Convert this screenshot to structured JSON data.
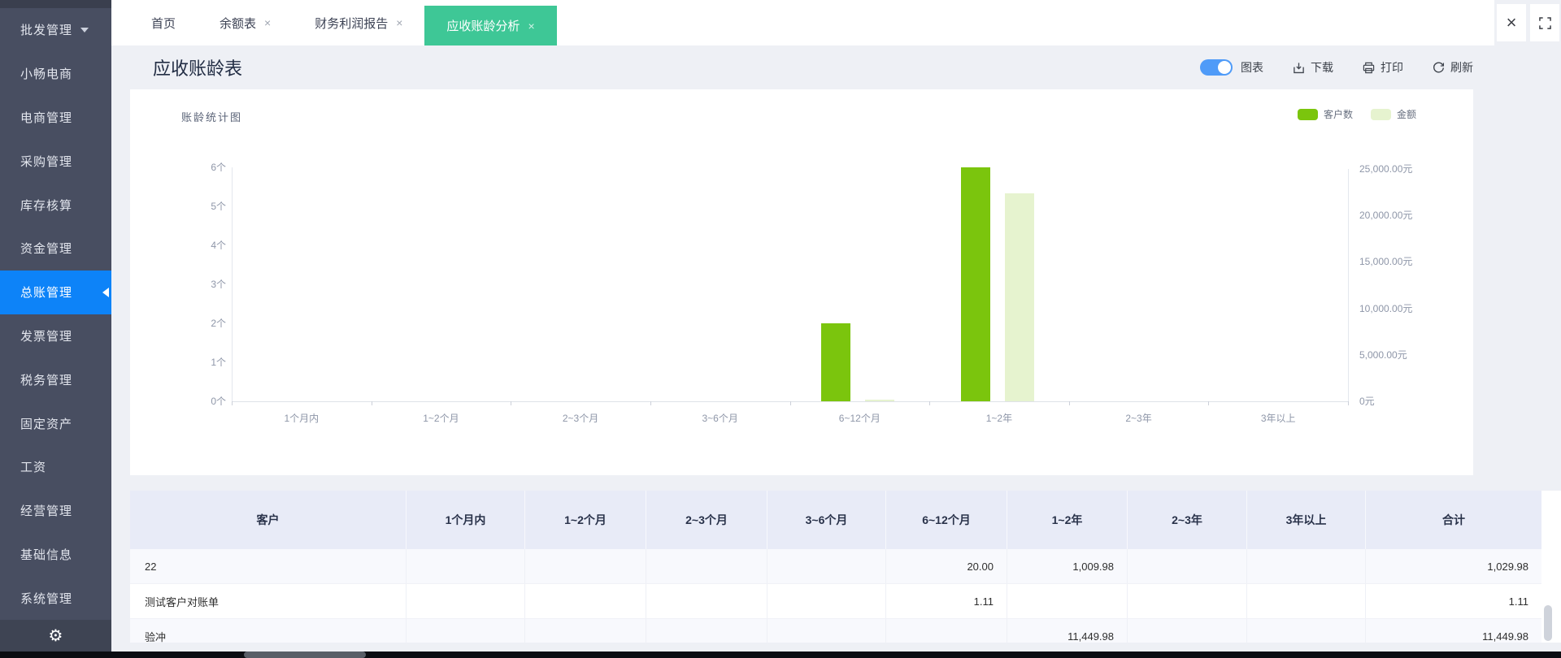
{
  "colors": {
    "sidebar_bg": "#484e61",
    "active_item_blue": "#0d83f8",
    "active_tab_green": "#3ec796",
    "toggle_blue": "#4f9bf8",
    "bar_customers_green": "#7bc50d",
    "bar_amount_light_green": "#e6f3cf",
    "table_header_bg": "#e8ebf7"
  },
  "sidebar": {
    "items": [
      {
        "label": "批发管理",
        "caret": true
      },
      {
        "label": "小畅电商"
      },
      {
        "label": "电商管理"
      },
      {
        "label": "采购管理"
      },
      {
        "label": "库存核算"
      },
      {
        "label": "资金管理"
      },
      {
        "label": "总账管理"
      },
      {
        "label": "发票管理"
      },
      {
        "label": "税务管理"
      },
      {
        "label": "固定资产"
      },
      {
        "label": "工资"
      },
      {
        "label": "经营管理"
      },
      {
        "label": "基础信息"
      },
      {
        "label": "系统管理"
      }
    ],
    "active_index": 6,
    "settings_icon": "gear-icon"
  },
  "tabs": {
    "items": [
      {
        "label": "首页",
        "closable": false,
        "active": false
      },
      {
        "label": "余额表",
        "closable": true,
        "active": false
      },
      {
        "label": "财务利润报告",
        "closable": true,
        "active": false
      },
      {
        "label": "应收账龄分析",
        "closable": true,
        "active": true
      }
    ],
    "close_glyph": "×"
  },
  "window_controls": {
    "close_label": "×",
    "fullscreen_icon": "fullscreen-icon"
  },
  "page": {
    "title": "应收账龄表",
    "toolbar": {
      "chart_toggle_label": "图表",
      "chart_toggle_on": true,
      "download_label": "下载",
      "print_label": "打印",
      "refresh_label": "刷新"
    }
  },
  "chart_data": {
    "type": "bar",
    "title": "账龄统计图",
    "categories": [
      "1个月内",
      "1~2个月",
      "2~3个月",
      "3~6个月",
      "6~12个月",
      "1~2年",
      "2~3年",
      "3年以上"
    ],
    "series": [
      {
        "name": "客户数",
        "axis": "left",
        "color": "#7bc50d",
        "values": [
          0,
          0,
          0,
          0,
          2,
          6,
          0,
          0
        ]
      },
      {
        "name": "金额",
        "axis": "right",
        "color": "#e6f3cf",
        "values": [
          0,
          0,
          0,
          0,
          21.11,
          22380,
          0,
          0
        ]
      }
    ],
    "y_left": {
      "unit": "个",
      "min": 0,
      "max": 6,
      "tick_labels": [
        "6个",
        "5个",
        "4个",
        "3个",
        "2个",
        "1个",
        "0个"
      ]
    },
    "y_right": {
      "unit": "元",
      "min": 0,
      "max": 25000,
      "tick_labels": [
        "25,000.00元",
        "20,000.00元",
        "15,000.00元",
        "10,000.00元",
        "5,000.00元",
        "0元"
      ]
    },
    "legend_position": "top-right",
    "grid": false
  },
  "table": {
    "headers": [
      "客户",
      "1个月内",
      "1~2个月",
      "2~3个月",
      "3~6个月",
      "6~12个月",
      "1~2年",
      "2~3年",
      "3年以上",
      "合计"
    ],
    "rows": [
      {
        "cells": [
          "22",
          "",
          "",
          "",
          "",
          "20.00",
          "1,009.98",
          "",
          "",
          "1,029.98"
        ]
      },
      {
        "cells": [
          "测试客户对账单",
          "",
          "",
          "",
          "",
          "1.11",
          "",
          "",
          "",
          "1.11"
        ]
      },
      {
        "cells": [
          "验冲",
          "",
          "",
          "",
          "",
          "",
          "11,449.98",
          "",
          "",
          "11,449.98"
        ],
        "clipped": true
      }
    ]
  }
}
